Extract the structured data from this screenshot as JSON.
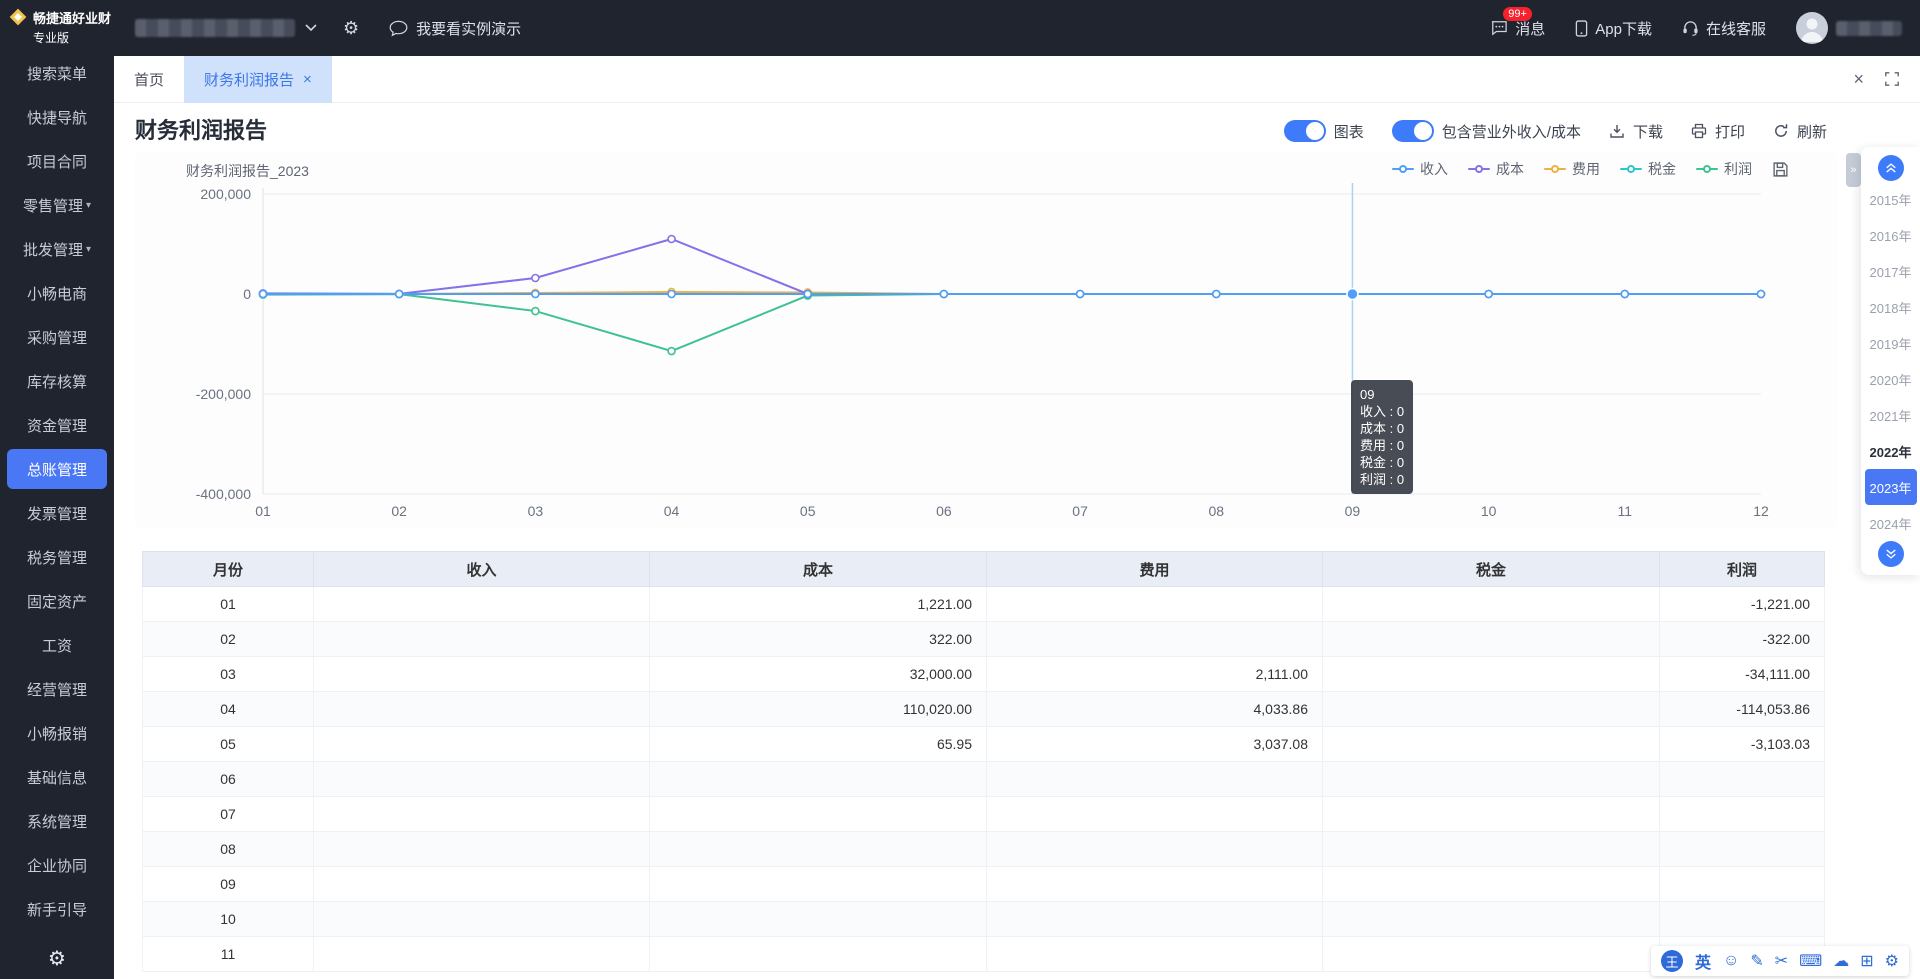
{
  "brand": {
    "title": "畅捷通好业财",
    "subtitle": "专业版"
  },
  "topbar": {
    "demo_label": "我要看实例演示",
    "messages_label": "消息",
    "messages_badge": "99+",
    "app_download_label": "App下载",
    "support_label": "在线客服"
  },
  "tabs": {
    "items": [
      {
        "label": "首页",
        "active": false,
        "closable": false
      },
      {
        "label": "财务利润报告",
        "active": true,
        "closable": true
      }
    ]
  },
  "sidebar": {
    "items": [
      {
        "label": "搜索菜单"
      },
      {
        "label": "快捷导航"
      },
      {
        "label": "项目合同"
      },
      {
        "label": "零售管理",
        "caret": true
      },
      {
        "label": "批发管理",
        "caret": true
      },
      {
        "label": "小畅电商"
      },
      {
        "label": "采购管理"
      },
      {
        "label": "库存核算"
      },
      {
        "label": "资金管理"
      },
      {
        "label": "总账管理",
        "active": true
      },
      {
        "label": "发票管理"
      },
      {
        "label": "税务管理"
      },
      {
        "label": "固定资产"
      },
      {
        "label": "工资"
      },
      {
        "label": "经营管理"
      },
      {
        "label": "小畅报销"
      },
      {
        "label": "基础信息"
      },
      {
        "label": "系统管理"
      },
      {
        "label": "企业协同"
      },
      {
        "label": "新手引导"
      }
    ]
  },
  "page": {
    "title": "财务利润报告",
    "chart_toggle_label": "图表",
    "include_toggle_label": "包含营业外收入/成本",
    "download_label": "下载",
    "print_label": "打印",
    "refresh_label": "刷新"
  },
  "chart_data": {
    "type": "line",
    "title": "财务利润报告_2023",
    "categories": [
      "01",
      "02",
      "03",
      "04",
      "05",
      "06",
      "07",
      "08",
      "09",
      "10",
      "11",
      "12"
    ],
    "ylim": [
      -400000,
      200000
    ],
    "grid": true,
    "legend_position": "top-right",
    "yticks": [
      {
        "label": "200,000",
        "value": 200000
      },
      {
        "label": "0",
        "value": 0
      },
      {
        "label": "-200,000",
        "value": -200000
      },
      {
        "label": "-400,000",
        "value": -400000
      }
    ],
    "series": [
      {
        "name": "收入",
        "color": "#4f9ef8",
        "values": [
          0,
          0,
          0,
          0,
          0,
          0,
          0,
          0,
          0,
          0,
          0,
          0
        ]
      },
      {
        "name": "成本",
        "color": "#8273e9",
        "values": [
          1221,
          322,
          32000,
          110020,
          65.95,
          0,
          0,
          0,
          0,
          0,
          0,
          0
        ]
      },
      {
        "name": "费用",
        "color": "#eeb041",
        "values": [
          0,
          0,
          2111,
          4033.86,
          3037.08,
          0,
          0,
          0,
          0,
          0,
          0,
          0
        ]
      },
      {
        "name": "税金",
        "color": "#2ec7c9",
        "values": [
          0,
          0,
          0,
          0,
          0,
          0,
          0,
          0,
          0,
          0,
          0,
          0
        ]
      },
      {
        "name": "利润",
        "color": "#3ec28f",
        "values": [
          -1221,
          -322,
          -34111,
          -114053.86,
          -3103.03,
          0,
          0,
          0,
          0,
          0,
          0,
          0
        ]
      }
    ],
    "highlight_index": 8,
    "tooltip": {
      "title": "09",
      "lines": [
        "收入 : 0",
        "成本 : 0",
        "费用 : 0",
        "税金 : 0",
        "利润 : 0"
      ]
    }
  },
  "table": {
    "headers": [
      "月份",
      "收入",
      "成本",
      "费用",
      "税金",
      "利润"
    ],
    "rows": [
      [
        "01",
        "",
        "1,221.00",
        "",
        "",
        "-1,221.00"
      ],
      [
        "02",
        "",
        "322.00",
        "",
        "",
        "-322.00"
      ],
      [
        "03",
        "",
        "32,000.00",
        "2,111.00",
        "",
        "-34,111.00"
      ],
      [
        "04",
        "",
        "110,020.00",
        "4,033.86",
        "",
        "-114,053.86"
      ],
      [
        "05",
        "",
        "65.95",
        "3,037.08",
        "",
        "-3,103.03"
      ],
      [
        "06",
        "",
        "",
        "",
        "",
        ""
      ],
      [
        "07",
        "",
        "",
        "",
        "",
        ""
      ],
      [
        "08",
        "",
        "",
        "",
        "",
        ""
      ],
      [
        "09",
        "",
        "",
        "",
        "",
        ""
      ],
      [
        "10",
        "",
        "",
        "",
        "",
        ""
      ],
      [
        "11",
        "",
        "",
        "",
        "",
        ""
      ]
    ]
  },
  "year_panel": {
    "items": [
      "2015年",
      "2016年",
      "2017年",
      "2018年",
      "2019年",
      "2020年",
      "2021年",
      "2022年",
      "2023年",
      "2024年"
    ],
    "active": "2023年",
    "emphasized": "2022年"
  },
  "ime": {
    "logo": "王",
    "lang": "英",
    "icons": [
      "smiley",
      "pen",
      "scissors",
      "keyboard",
      "cloud",
      "grid",
      "gear"
    ]
  },
  "colors": {
    "accent": "#3d7bfb",
    "sidebar_bg": "#1f242e",
    "active_tab_bg": "#d0e1fb",
    "badge_red": "#f5222d"
  }
}
